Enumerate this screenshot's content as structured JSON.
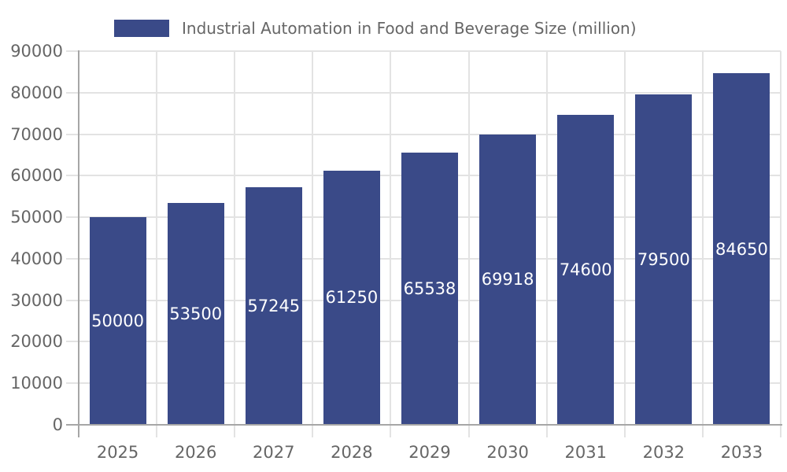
{
  "chart_data": {
    "type": "bar",
    "title": "Industrial Automation in Food and Beverage Size (million)",
    "legend": [
      "Industrial Automation in Food and Beverage Size (million)"
    ],
    "legend_position": "top",
    "categories": [
      "2025",
      "2026",
      "2027",
      "2028",
      "2029",
      "2030",
      "2031",
      "2032",
      "2033"
    ],
    "values": [
      50000,
      53500,
      57245,
      61250,
      65538,
      69918,
      74600,
      79500,
      84650
    ],
    "value_labels": [
      "50000",
      "53500",
      "57245",
      "61250",
      "65538",
      "69918",
      "74600",
      "79500",
      "84650"
    ],
    "value_label_position": "inside-center",
    "xlabel": "",
    "ylabel": "",
    "ylim": [
      0,
      90000
    ],
    "yticks": [
      0,
      10000,
      20000,
      30000,
      40000,
      50000,
      60000,
      70000,
      80000,
      90000
    ],
    "grid": true,
    "colors": {
      "bar": "#3a4a88",
      "value_label": "#ffffff",
      "axis_text": "#666666",
      "axis_line": "#a6a6a6",
      "gridline": "#e3e3e3",
      "background": "#ffffff"
    }
  }
}
